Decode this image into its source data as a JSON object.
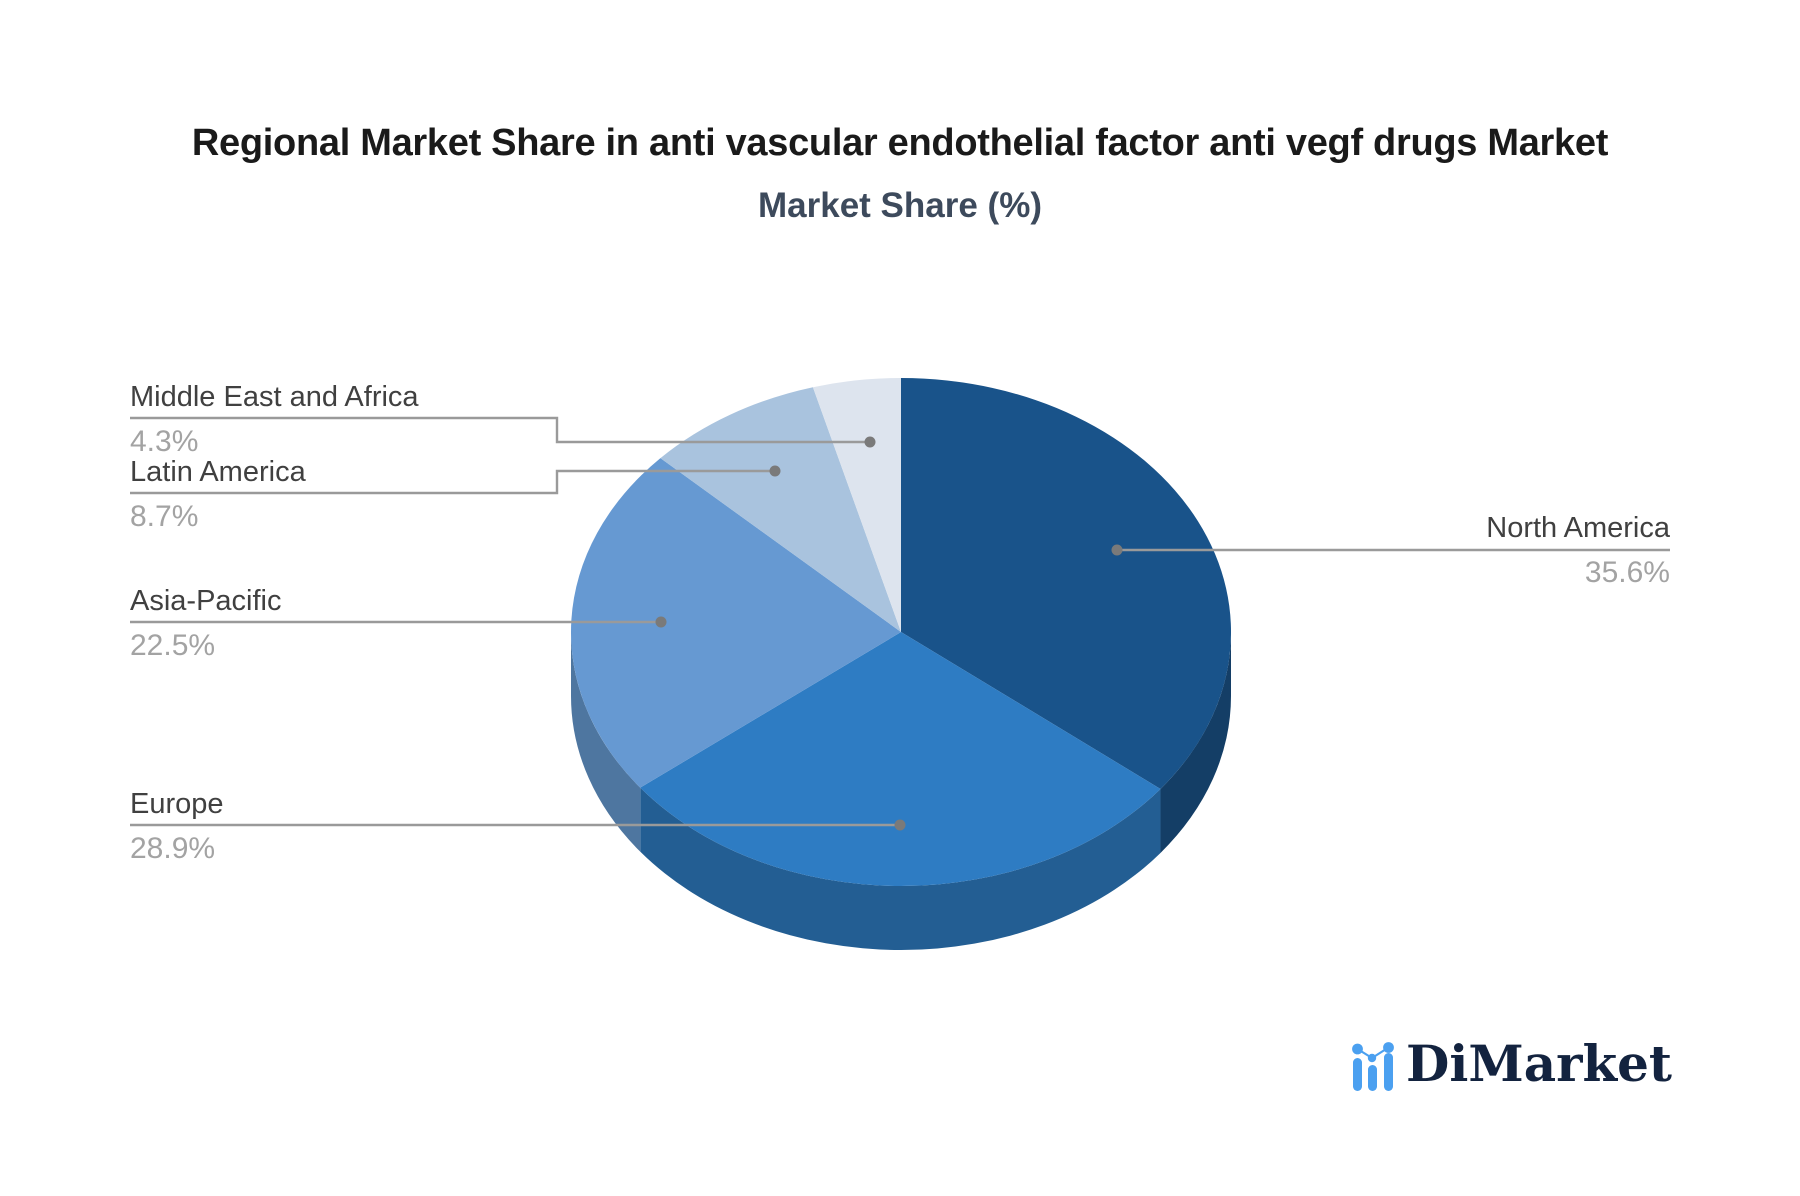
{
  "chart_data": {
    "type": "pie",
    "title": "Regional Market Share in anti vascular endothelial factor anti vegf drugs Market",
    "subtitle": "Market Share (%)",
    "unit": "%",
    "start_angle_deg": 0,
    "direction": "clockwise",
    "effect_3d": true,
    "legend_position": "callout-labels",
    "slices": [
      {
        "label": "North America",
        "value": 35.6,
        "pct_label": "35.6%",
        "color": "#19538A",
        "side_color": "#143E66"
      },
      {
        "label": "Europe",
        "value": 28.9,
        "pct_label": "28.9%",
        "color": "#2E7CC3",
        "side_color": "#235E93"
      },
      {
        "label": "Asia-Pacific",
        "value": 22.5,
        "pct_label": "22.5%",
        "color": "#6699D2",
        "side_color": "#4E76A0"
      },
      {
        "label": "Latin America",
        "value": 8.7,
        "pct_label": "8.7%",
        "color": "#A9C3DE",
        "side_color": "#8196AB"
      },
      {
        "label": "Middle East and Africa",
        "value": 4.3,
        "pct_label": "4.3%",
        "color": "#DDE4EE",
        "side_color": "#A9AEB6"
      }
    ],
    "callout_line_color": "#9a9a9a",
    "callout_dot_color": "#7a7a7a"
  },
  "branding": {
    "logo_text": "DiMarket",
    "logo_icon": "bar-line-chart-icon",
    "logo_icon_color": "#4BA0F0",
    "logo_text_color": "#13233f"
  },
  "colors": {
    "background": "#ffffff",
    "title": "#1a1a1a",
    "subtitle": "#3d4a5c",
    "label_text": "#404040",
    "pct_text": "#a3a3a3"
  }
}
